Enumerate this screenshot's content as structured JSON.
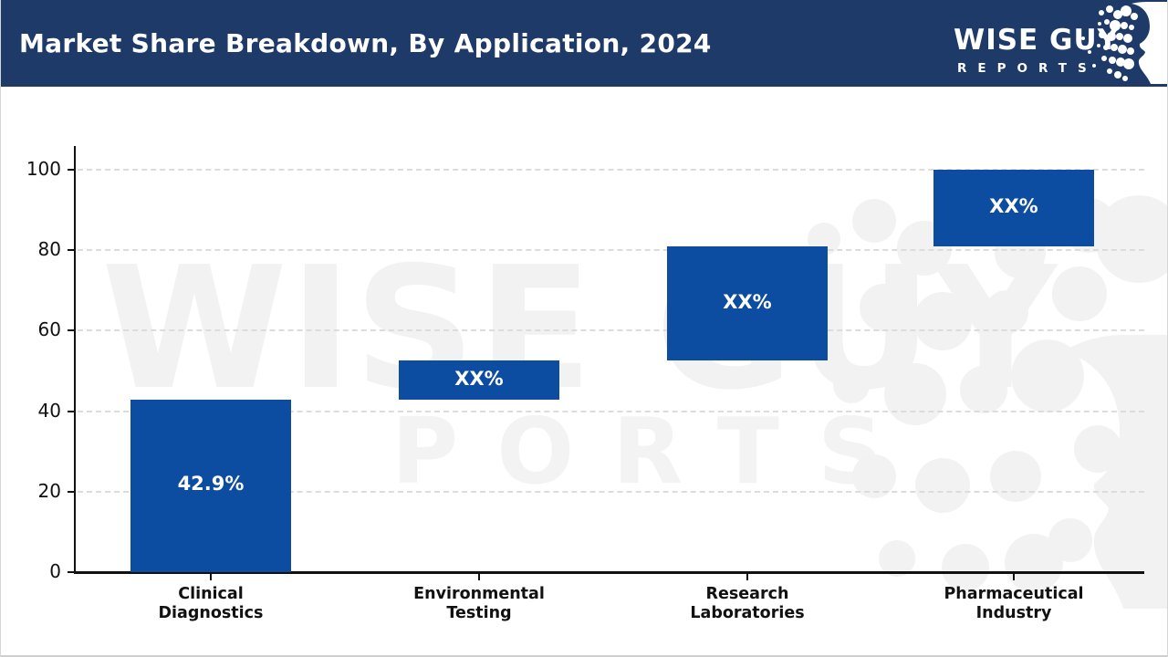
{
  "header": {
    "title": "Market Share Breakdown, By Application, 2024",
    "logo": {
      "line1": "WISE GUY",
      "line2": "REPORTS"
    }
  },
  "watermark": {
    "line1": "WISE GUY",
    "line2": "PORTS"
  },
  "colors": {
    "header_bg": "#1e3a68",
    "bar": "#0d4da1",
    "grid": "#dcdcdc",
    "axis": "#111111",
    "watermark": "#f2f2f2",
    "label_on_bar": "#ffffff"
  },
  "chart_data": {
    "type": "bar",
    "subtype": "waterfall",
    "title": "Market Share Breakdown, By Application, 2024",
    "xlabel": "",
    "ylabel": "",
    "ylim": [
      0,
      100
    ],
    "y_ticks": [
      0,
      20,
      40,
      60,
      80,
      100
    ],
    "grid": true,
    "gridline_style": "dashed",
    "legend": "none",
    "categories": [
      "Clinical Diagnostics",
      "Environmental Testing",
      "Research Laboratories",
      "Pharmaceutical Industry"
    ],
    "segments": [
      {
        "category": "Clinical Diagnostics",
        "category_lines": [
          "Clinical",
          "Diagnostics"
        ],
        "start": 0,
        "end": 42.9,
        "value_label": "42.9%"
      },
      {
        "category": "Environmental Testing",
        "category_lines": [
          "Environmental",
          "Testing"
        ],
        "start": 42.9,
        "end": 52.5,
        "value_label": "XX%"
      },
      {
        "category": "Research Laboratories",
        "category_lines": [
          "Research",
          "Laboratories"
        ],
        "start": 52.5,
        "end": 81.0,
        "value_label": "XX%"
      },
      {
        "category": "Pharmaceutical Industry",
        "category_lines": [
          "Pharmaceutical",
          "Industry"
        ],
        "start": 81.0,
        "end": 100.0,
        "value_label": "XX%"
      }
    ]
  }
}
